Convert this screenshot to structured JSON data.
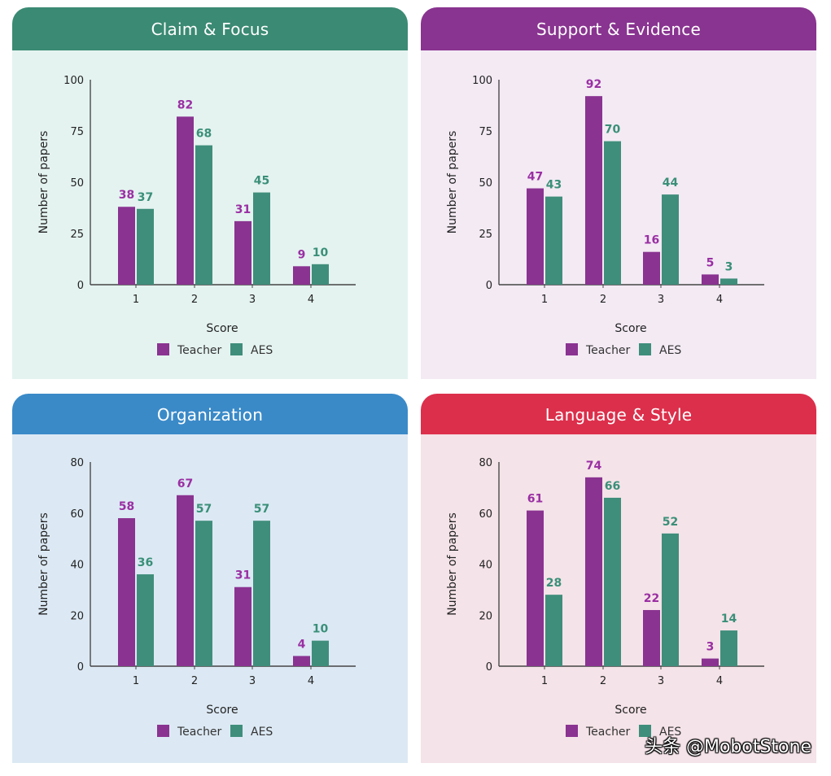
{
  "colors": {
    "teacher": "#8a3391",
    "aes": "#3f8e7b",
    "teacher_label": "#9a2fa3",
    "aes_label": "#3a8f78"
  },
  "chart_data": [
    {
      "type": "bar",
      "title": "Claim & Focus",
      "header_color": "#3b8a73",
      "body_color": "#e4f3f0",
      "xlabel": "Score",
      "ylabel": "Number of papers",
      "categories": [
        "1",
        "2",
        "3",
        "4"
      ],
      "ylim": [
        0,
        100
      ],
      "yticks": [
        0,
        25,
        50,
        75,
        100
      ],
      "legend": "bottom",
      "grid": false,
      "series": [
        {
          "name": "Teacher",
          "values": [
            38,
            82,
            31,
            9
          ]
        },
        {
          "name": "AES",
          "values": [
            37,
            68,
            45,
            10
          ]
        }
      ]
    },
    {
      "type": "bar",
      "title": "Support & Evidence",
      "header_color": "#893490",
      "body_color": "#f3eaf4",
      "xlabel": "Score",
      "ylabel": "Number of papers",
      "categories": [
        "1",
        "2",
        "3",
        "4"
      ],
      "ylim": [
        0,
        100
      ],
      "yticks": [
        0,
        25,
        50,
        75,
        100
      ],
      "legend": "bottom",
      "grid": false,
      "series": [
        {
          "name": "Teacher",
          "values": [
            47,
            92,
            16,
            5
          ]
        },
        {
          "name": "AES",
          "values": [
            43,
            70,
            44,
            3
          ]
        }
      ]
    },
    {
      "type": "bar",
      "title": "Organization",
      "header_color": "#3a8ac8",
      "body_color": "#dce9f4",
      "xlabel": "Score",
      "ylabel": "Number of papers",
      "categories": [
        "1",
        "2",
        "3",
        "4"
      ],
      "ylim": [
        0,
        80
      ],
      "yticks": [
        0,
        20,
        40,
        60,
        80
      ],
      "legend": "bottom",
      "grid": false,
      "series": [
        {
          "name": "Teacher",
          "values": [
            58,
            67,
            31,
            4
          ]
        },
        {
          "name": "AES",
          "values": [
            36,
            57,
            57,
            10
          ]
        }
      ]
    },
    {
      "type": "bar",
      "title": "Language & Style",
      "header_color": "#dc2f4b",
      "body_color": "#f4e3e8",
      "xlabel": "Score",
      "ylabel": "Number of papers",
      "categories": [
        "1",
        "2",
        "3",
        "4"
      ],
      "ylim": [
        0,
        80
      ],
      "yticks": [
        0,
        20,
        40,
        60,
        80
      ],
      "legend": "bottom",
      "grid": false,
      "series": [
        {
          "name": "Teacher",
          "values": [
            61,
            74,
            22,
            3
          ]
        },
        {
          "name": "AES",
          "values": [
            28,
            66,
            52,
            14
          ]
        }
      ]
    }
  ],
  "watermark": "头条 @MobotStone"
}
